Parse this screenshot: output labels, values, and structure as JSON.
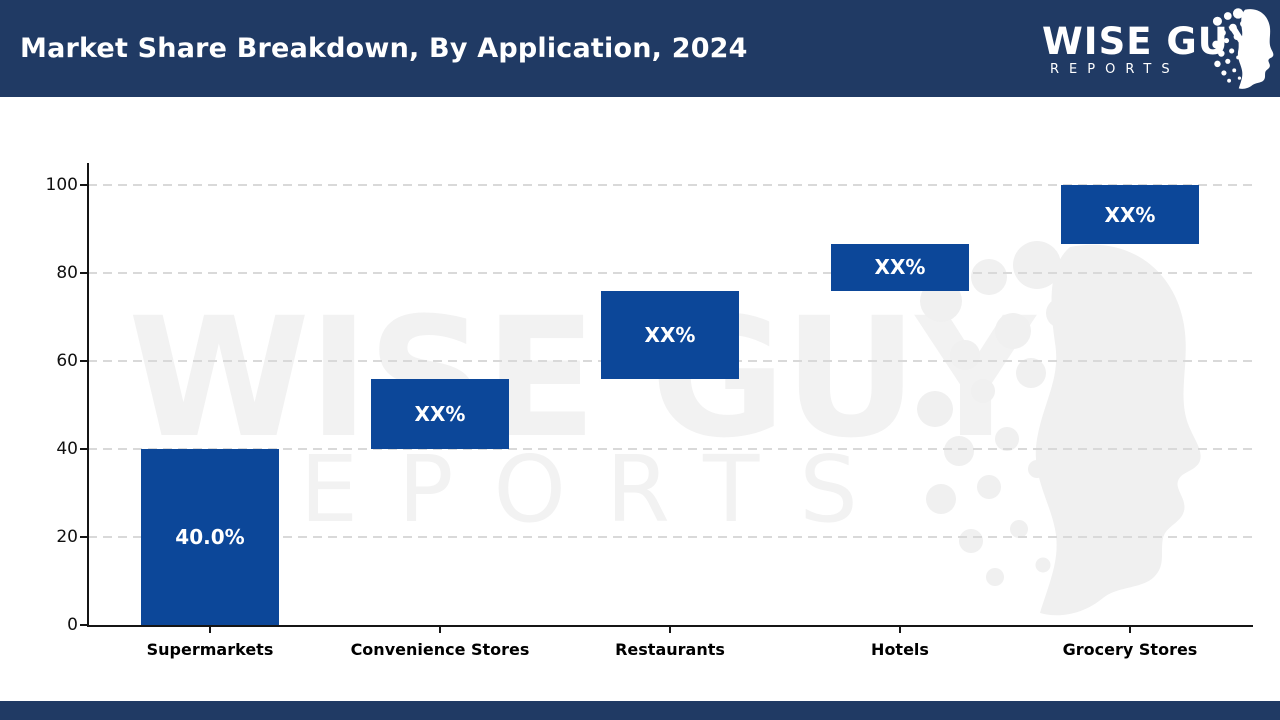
{
  "header": {
    "title": "Market Share Breakdown, By Application, 2024",
    "logo": {
      "line1": "WISE GUY",
      "line2": "REPORTS"
    }
  },
  "watermark": {
    "line1": "WISE GUY",
    "line2": "REPORTS"
  },
  "colors": {
    "header_bg": "#203A64",
    "footer_bg": "#203A64",
    "bar": "#0C4799",
    "bar_label": "#FFFFFF",
    "grid": "#D9D9D9",
    "axis": "#151515",
    "watermark_text": "#F2F2F2",
    "watermark_face": "#F0F0F0"
  },
  "chart_data": {
    "type": "bar",
    "subtype": "waterfall",
    "title": "Market Share Breakdown, By Application, 2024",
    "categories": [
      "Supermarkets",
      "Convenience Stores",
      "Restaurants",
      "Hotels",
      "Grocery Stores"
    ],
    "segments": [
      {
        "category": "Supermarkets",
        "start": 0,
        "end": 40,
        "label": "40.0%"
      },
      {
        "category": "Convenience Stores",
        "start": 40,
        "end": 56,
        "label": "XX%"
      },
      {
        "category": "Restaurants",
        "start": 56,
        "end": 76,
        "label": "XX%"
      },
      {
        "category": "Hotels",
        "start": 76,
        "end": 86.5,
        "label": "XX%"
      },
      {
        "category": "Grocery Stores",
        "start": 86.5,
        "end": 100,
        "label": "XX%"
      }
    ],
    "yticks": [
      0,
      20,
      40,
      60,
      80,
      100
    ],
    "ylim": [
      0,
      105
    ],
    "xlabel": "",
    "ylabel": "",
    "grid": "horizontal-dashed",
    "legend": "none"
  }
}
